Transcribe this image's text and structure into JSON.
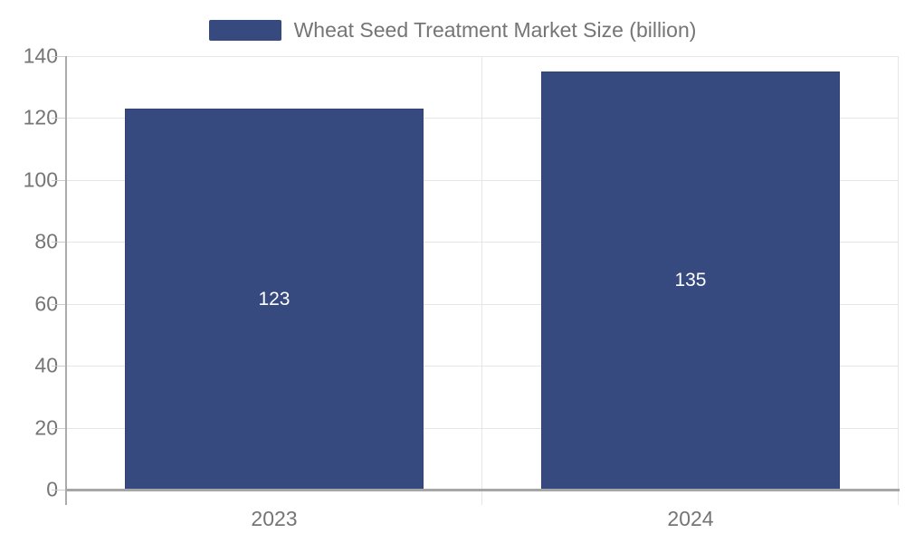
{
  "legend": {
    "label": "Wheat Seed Treatment Market Size (billion)"
  },
  "colors": {
    "bar_fill": "#364A80",
    "bar_border": "#2B3A66",
    "grid": "#e6e6e6",
    "axis": "#a6a6a6",
    "tick": "#cccccc",
    "axis_text": "#757575",
    "bar_label_text": "#ffffff"
  },
  "chart_data": {
    "type": "bar",
    "title": "Wheat Seed Treatment Market Size (billion)",
    "categories": [
      "2023",
      "2024"
    ],
    "values": [
      123,
      135
    ],
    "xlabel": "",
    "ylabel": "",
    "ylim": [
      0,
      140
    ],
    "ytick_step": 20,
    "ytick_labels": [
      "0",
      "20",
      "40",
      "60",
      "80",
      "100",
      "120",
      "140"
    ],
    "grid": true,
    "legend_position": "top-center",
    "bar_labels_inside": true
  }
}
